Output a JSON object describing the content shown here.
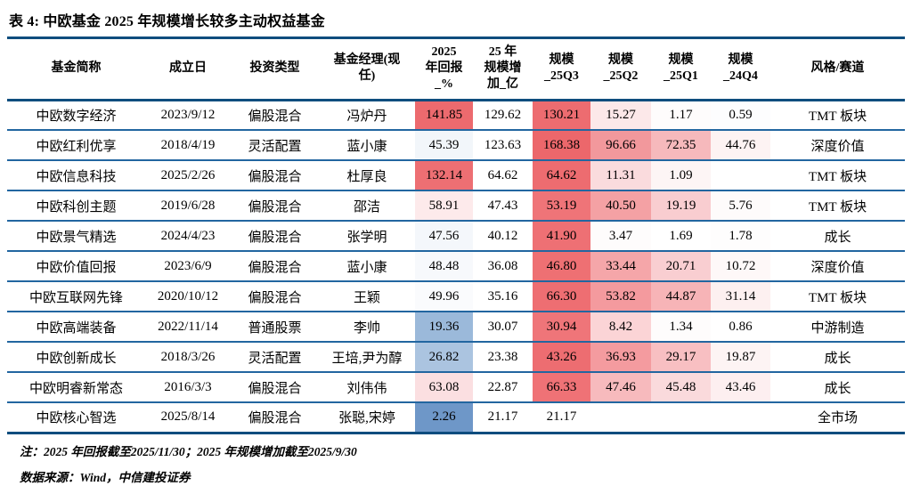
{
  "title": "表 4: 中欧基金 2025 年规模增长较多主动权益基金",
  "table": {
    "columns": [
      "基金简称",
      "成立日",
      "投资类型",
      "基金经理(现\n任)",
      "2025\n年回报\n_%",
      "25 年\n规模增\n加_亿",
      "规模\n_25Q3",
      "规模\n_25Q2",
      "规模\n_25Q1",
      "规模\n_24Q4",
      "风格/赛道"
    ],
    "rows": [
      {
        "cells": [
          {
            "t": "中欧数字经济"
          },
          {
            "t": "2023/9/12"
          },
          {
            "t": "偏股混合"
          },
          {
            "t": "冯炉丹"
          },
          {
            "t": "141.85",
            "bg": "#ec6a6e"
          },
          {
            "t": "129.62"
          },
          {
            "t": "130.21",
            "bg": "#ed6c70"
          },
          {
            "t": "15.27",
            "bg": "#fce8e9"
          },
          {
            "t": "1.17",
            "bg": "#fefcfc"
          },
          {
            "t": "0.59",
            "bg": "#fdfdfe"
          },
          {
            "t": "TMT 板块"
          }
        ]
      },
      {
        "cells": [
          {
            "t": "中欧红利优享"
          },
          {
            "t": "2018/4/19"
          },
          {
            "t": "灵活配置"
          },
          {
            "t": "蓝小康"
          },
          {
            "t": "45.39",
            "bg": "#f2f6fa"
          },
          {
            "t": "123.63"
          },
          {
            "t": "168.38",
            "bg": "#ec676b"
          },
          {
            "t": "96.66",
            "bg": "#f2989c"
          },
          {
            "t": "72.35",
            "bg": "#f6b9bc"
          },
          {
            "t": "44.76",
            "bg": "#fdf3f3"
          },
          {
            "t": "深度价值"
          }
        ]
      },
      {
        "cells": [
          {
            "t": "中欧信息科技"
          },
          {
            "t": "2025/2/26"
          },
          {
            "t": "偏股混合"
          },
          {
            "t": "杜厚良"
          },
          {
            "t": "132.14",
            "bg": "#ed6f73"
          },
          {
            "t": "64.62"
          },
          {
            "t": "64.62",
            "bg": "#ed6c70"
          },
          {
            "t": "11.31",
            "bg": "#fadbdd"
          },
          {
            "t": "1.09",
            "bg": "#fdf5f5"
          },
          {
            "t": ""
          },
          {
            "t": "TMT 板块"
          }
        ]
      },
      {
        "cells": [
          {
            "t": "中欧科创主题"
          },
          {
            "t": "2019/6/28"
          },
          {
            "t": "偏股混合"
          },
          {
            "t": "邵洁"
          },
          {
            "t": "58.91",
            "bg": "#fdeaeb"
          },
          {
            "t": "47.43"
          },
          {
            "t": "53.19",
            "bg": "#ef7478"
          },
          {
            "t": "40.50",
            "bg": "#f4a1a4"
          },
          {
            "t": "19.19",
            "bg": "#f9cdd0"
          },
          {
            "t": "5.76",
            "bg": "#fefbfb"
          },
          {
            "t": "TMT 板块"
          }
        ]
      },
      {
        "cells": [
          {
            "t": "中欧景气精选"
          },
          {
            "t": "2024/4/23"
          },
          {
            "t": "偏股混合"
          },
          {
            "t": "张学明"
          },
          {
            "t": "47.56",
            "bg": "#f4f7fb"
          },
          {
            "t": "40.12"
          },
          {
            "t": "41.90",
            "bg": "#ee7074"
          },
          {
            "t": "3.47",
            "bg": "#fefcfc"
          },
          {
            "t": "1.69",
            "bg": "#ffffff"
          },
          {
            "t": "1.78",
            "bg": "#fefdfd"
          },
          {
            "t": "成长"
          }
        ]
      },
      {
        "cells": [
          {
            "t": "中欧价值回报"
          },
          {
            "t": "2023/6/9"
          },
          {
            "t": "偏股混合"
          },
          {
            "t": "蓝小康"
          },
          {
            "t": "48.48",
            "bg": "#f7f9fc"
          },
          {
            "t": "36.08"
          },
          {
            "t": "46.80",
            "bg": "#ee7073"
          },
          {
            "t": "33.44",
            "bg": "#f5a6a9"
          },
          {
            "t": "20.71",
            "bg": "#f9ced1"
          },
          {
            "t": "10.72",
            "bg": "#fef8f8"
          },
          {
            "t": "深度价值"
          }
        ]
      },
      {
        "cells": [
          {
            "t": "中欧互联网先锋"
          },
          {
            "t": "2020/10/12"
          },
          {
            "t": "偏股混合"
          },
          {
            "t": "王颖"
          },
          {
            "t": "49.96",
            "bg": "#fafbfd"
          },
          {
            "t": "35.16"
          },
          {
            "t": "66.30",
            "bg": "#ee6e72"
          },
          {
            "t": "53.82",
            "bg": "#f49a9e"
          },
          {
            "t": "44.87",
            "bg": "#f7b4b7"
          },
          {
            "t": "31.14",
            "bg": "#fdf0f0"
          },
          {
            "t": "TMT 板块"
          }
        ]
      },
      {
        "cells": [
          {
            "t": "中欧高端装备"
          },
          {
            "t": "2022/11/14"
          },
          {
            "t": "普通股票"
          },
          {
            "t": "李帅"
          },
          {
            "t": "19.36",
            "bg": "#9bb9da"
          },
          {
            "t": "30.07"
          },
          {
            "t": "30.94",
            "bg": "#ef7579"
          },
          {
            "t": "8.42",
            "bg": "#fbd4d6"
          },
          {
            "t": "1.34",
            "bg": "#fefcfc"
          },
          {
            "t": "0.86",
            "bg": "#ffffff"
          },
          {
            "t": "中游制造"
          }
        ]
      },
      {
        "cells": [
          {
            "t": "中欧创新成长"
          },
          {
            "t": "2018/3/26"
          },
          {
            "t": "灵活配置"
          },
          {
            "t": "王培,尹为醇"
          },
          {
            "t": "26.82",
            "bg": "#abc4e0"
          },
          {
            "t": "23.38"
          },
          {
            "t": "43.26",
            "bg": "#ed6d71"
          },
          {
            "t": "36.93",
            "bg": "#f49b9f"
          },
          {
            "t": "29.17",
            "bg": "#f8bfc2"
          },
          {
            "t": "19.87",
            "bg": "#fdf4f4"
          },
          {
            "t": "成长"
          }
        ]
      },
      {
        "cells": [
          {
            "t": "中欧明睿新常态"
          },
          {
            "t": "2016/3/3"
          },
          {
            "t": "偏股混合"
          },
          {
            "t": "刘伟伟"
          },
          {
            "t": "63.08",
            "bg": "#fbdfe1"
          },
          {
            "t": "22.87"
          },
          {
            "t": "66.33",
            "bg": "#ef7276"
          },
          {
            "t": "47.46",
            "bg": "#f7babd"
          },
          {
            "t": "45.48",
            "bg": "#fadadc"
          },
          {
            "t": "43.46",
            "bg": "#fdeff0"
          },
          {
            "t": "成长"
          }
        ]
      },
      {
        "cells": [
          {
            "t": "中欧核心智选"
          },
          {
            "t": "2025/8/14"
          },
          {
            "t": "偏股混合"
          },
          {
            "t": "张聪,宋婷"
          },
          {
            "t": "2.26",
            "bg": "#6e97c8"
          },
          {
            "t": "21.17"
          },
          {
            "t": "21.17"
          },
          {
            "t": ""
          },
          {
            "t": ""
          },
          {
            "t": ""
          },
          {
            "t": "全市场"
          }
        ]
      }
    ]
  },
  "notes": [
    "注：2025 年回报截至2025/11/30；2025 年规模增加截至2025/9/30",
    "数据来源：Wind，中信建投证券"
  ],
  "colors": {
    "thick_border": "#0e4d7e",
    "thin_border": "#2266a0",
    "heat_red_max": "#ec676b",
    "heat_blue_max": "#6e97c8"
  }
}
